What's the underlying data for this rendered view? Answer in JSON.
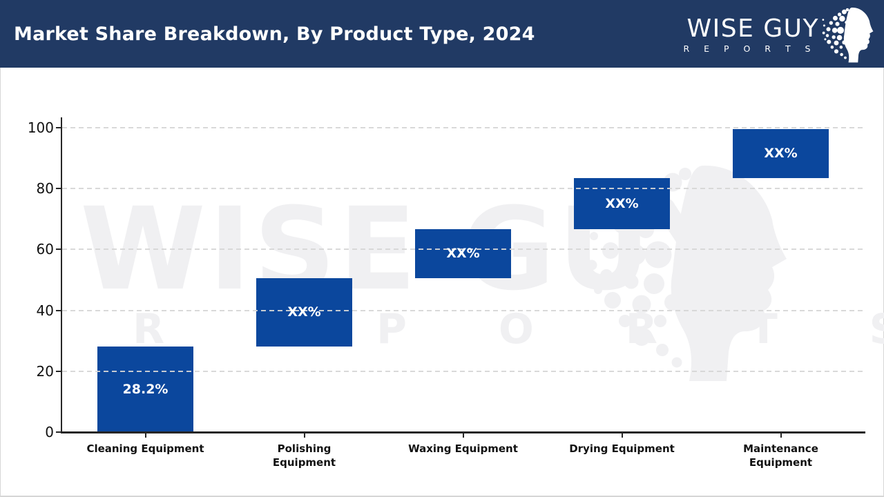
{
  "header": {
    "title": "Market Share Breakdown, By Product Type, 2024",
    "bg_color": "#213a64",
    "logo": {
      "line1": "WISE GUY",
      "line2": "R E P O R T S",
      "icon": "dotted-head-profile-icon"
    }
  },
  "watermark": {
    "line1": "WISE GUY",
    "line2": "R E P O R T S",
    "icon": "dotted-head-profile-icon",
    "color": "#f0f0f2"
  },
  "chart_data": {
    "type": "bar",
    "subtype": "waterfall-floating-bars",
    "title": "Market Share Breakdown, By Product Type, 2024",
    "categories": [
      "Cleaning Equipment",
      "Polishing\nEquipment",
      "Waxing Equipment",
      "Drying Equipment",
      "Maintenance\nEquipment"
    ],
    "segments": [
      {
        "category": "Cleaning Equipment",
        "start": 0,
        "end": 28.2,
        "label": "28.2%"
      },
      {
        "category": "Polishing Equipment",
        "start": 28.2,
        "end": 50.5,
        "label": "XX%"
      },
      {
        "category": "Waxing Equipment",
        "start": 50.5,
        "end": 66.6,
        "label": "XX%"
      },
      {
        "category": "Drying Equipment",
        "start": 66.6,
        "end": 83.4,
        "label": "XX%"
      },
      {
        "category": "Maintenance Equipment",
        "start": 83.4,
        "end": 99.5,
        "label": "XX%"
      }
    ],
    "xlabel": "",
    "ylabel": "",
    "ylim": [
      0,
      100
    ],
    "yticks": [
      0,
      20,
      40,
      60,
      80,
      100
    ],
    "grid": "horizontal-dashed",
    "legend": "none",
    "bar_color": "#0b479d",
    "bar_label_color": "#ffffff"
  }
}
